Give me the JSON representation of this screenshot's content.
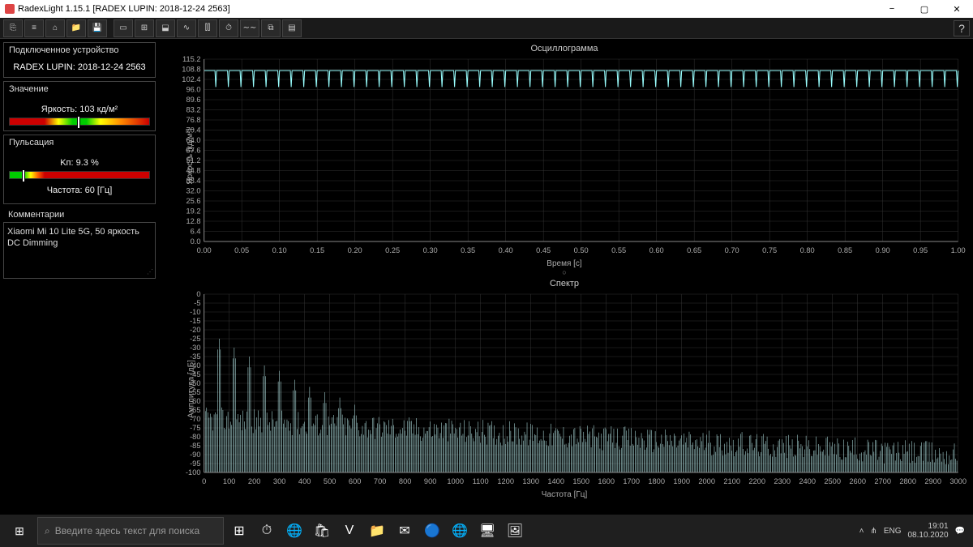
{
  "titlebar": {
    "title": "RadexLight 1.15.1 [RADEX LUPIN: 2018-12-24 2563]",
    "min": "−",
    "max": "▢",
    "close": "✕"
  },
  "toolbar": {
    "icons": [
      "⎘",
      "≡",
      "⌂",
      "📁",
      "💾",
      "",
      "▭",
      "⊞",
      "⬓",
      "∿",
      "⫿⫿",
      "⏱",
      "∼∼",
      "⧉",
      "▤"
    ],
    "help": "?"
  },
  "sidebar": {
    "device_h": "Подключенное устройство",
    "device_name": "RADEX LUPIN: 2018-12-24 2563",
    "value_h": "Значение",
    "brightness_label": "Яркость: 103 кд/м²",
    "brightness_marker_pct": 48,
    "puls_h": "Пульсация",
    "kp_label": "Kп: 9.3 %",
    "kp_marker_pct": 9,
    "freq_label": "Частота: 60 [Гц]",
    "comments_h": "Комментарии",
    "comments_text": "Xiaomi Mi 10 Lite 5G, 50 яркость\nDC Dimming"
  },
  "oscilloscope": {
    "title": "Осциллограмма",
    "ylabel": "Яркость [кд/м²]",
    "xlabel": "Время [c]",
    "xmin": 0,
    "xmax": 1.0,
    "xstep": 0.05,
    "ymin": 0,
    "ymax": 115.2,
    "yticks": [
      115.2,
      108.8,
      102.4,
      96.0,
      89.6,
      83.2,
      76.8,
      70.4,
      64.0,
      57.6,
      51.2,
      44.8,
      38.4,
      32.0,
      25.6,
      19.2,
      12.8,
      6.4,
      0.0
    ],
    "wave_high": 108,
    "wave_low": 96,
    "wave_freq_hz": 60,
    "colors": {
      "line": "#99ffff",
      "grid": "#333333",
      "bg": "#000000",
      "text": "#aaaaaa"
    }
  },
  "spectrum": {
    "title": "Спектр",
    "ylabel": "Амплитуда [дБ]",
    "xlabel": "Частота [Гц]",
    "xmin": 0,
    "xmax": 3000,
    "xstep": 100,
    "ymin": -100,
    "ymax": 0,
    "ystep": 5,
    "peaks_hz": [
      60,
      120,
      180,
      240,
      300,
      360,
      420,
      480,
      540,
      600
    ],
    "peak_db": [
      -25,
      -30,
      -35,
      -40,
      -43,
      -48,
      -52,
      -55,
      -58,
      -62
    ],
    "noise_floor_near": -70,
    "noise_floor_far": -90,
    "colors": {
      "line": "#bbeeee",
      "grid": "#333333",
      "bg": "#000000",
      "text": "#aaaaaa"
    }
  },
  "taskbar": {
    "search_placeholder": "Введите здесь текст для поиска",
    "apps": [
      "⊞",
      "⏱",
      "🌐",
      "🛍",
      "V",
      "📁",
      "✉",
      "🔵",
      "🌐",
      "🖥",
      "🖼"
    ],
    "tray": {
      "up": "˄",
      "net": "⋔",
      "lang": "ENG",
      "time": "19:01",
      "date": "08.10.2020",
      "notif": "💬"
    }
  }
}
